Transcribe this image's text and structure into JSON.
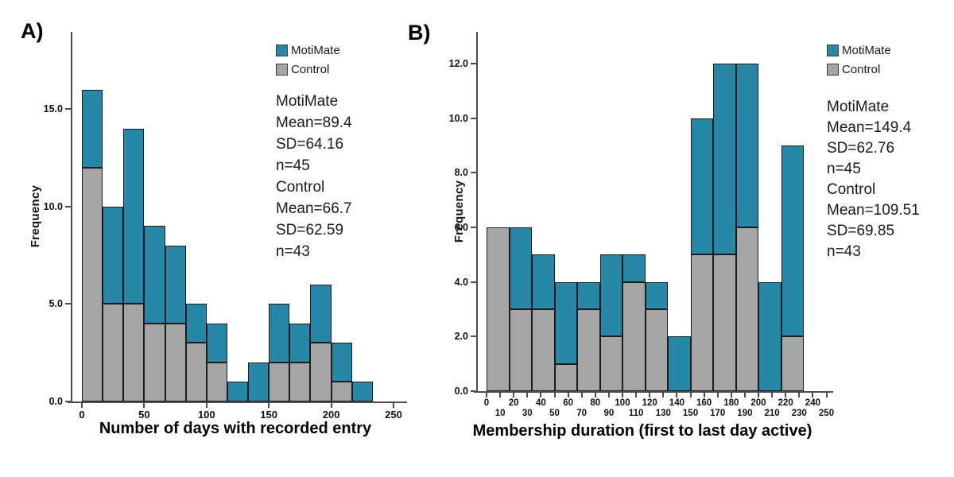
{
  "colors": {
    "motimate": "#2787a6",
    "control": "#a5a5a5",
    "bar_border": "#1b1b1b",
    "axis": "#4d4d4d",
    "text": "#1a1a1a"
  },
  "chart_data": [
    {
      "type": "bar",
      "subtype": "stacked-histogram",
      "panel_label": "A)",
      "xlabel": "Number of days with recorded entry",
      "ylabel": "Frequency",
      "bin_start": 0,
      "bin_width": 16.667,
      "xlim": [
        0,
        250
      ],
      "ylim": [
        0,
        19
      ],
      "grid": false,
      "legend_position": "top-right",
      "series": [
        {
          "name": "MotiMate",
          "color": "#2787a6",
          "values": [
            4,
            5,
            9,
            5,
            4,
            2,
            2,
            1,
            2,
            3,
            2,
            3,
            2,
            1
          ]
        },
        {
          "name": "Control",
          "color": "#a5a5a5",
          "values": [
            12,
            5,
            5,
            4,
            4,
            3,
            2,
            0,
            0,
            2,
            2,
            3,
            1,
            0
          ]
        }
      ],
      "stack_order_bottom_to_top": [
        "Control",
        "MotiMate"
      ],
      "totals": [
        16,
        10,
        14,
        9,
        8,
        5,
        4,
        1,
        2,
        5,
        4,
        6,
        3,
        1
      ],
      "y_tick_values": [
        0,
        5,
        10,
        15
      ],
      "y_tick_labels": [
        "0.0",
        "5.0",
        "10.0",
        "15.0"
      ],
      "x_tick_values": [
        0,
        50,
        100,
        150,
        200,
        250
      ],
      "x_tick_labels": [
        "0",
        "50",
        "100",
        "150",
        "200",
        "250"
      ],
      "x_tick_stagger": false,
      "legend": [
        {
          "label": "MotiMate",
          "color": "#2787a6"
        },
        {
          "label": "Control",
          "color": "#a5a5a5"
        }
      ],
      "annotation_lines": [
        "MotiMate",
        "Mean=89.4",
        "SD=64.16",
        "n=45",
        "Control",
        "Mean=66.7",
        "SD=62.59",
        "n=43"
      ]
    },
    {
      "type": "bar",
      "subtype": "stacked-histogram",
      "panel_label": "B)",
      "xlabel": "Membership duration (first to last day active)",
      "ylabel": "Frequency",
      "bin_start": 0,
      "bin_width": 16.667,
      "xlim": [
        0,
        250
      ],
      "ylim": [
        0,
        13.2
      ],
      "grid": false,
      "legend_position": "top-right",
      "series": [
        {
          "name": "MotiMate",
          "color": "#2787a6",
          "values": [
            0,
            3,
            2,
            3,
            1,
            3,
            1,
            1,
            2,
            5,
            7,
            6,
            4,
            7
          ]
        },
        {
          "name": "Control",
          "color": "#a5a5a5",
          "values": [
            6,
            3,
            3,
            1,
            3,
            2,
            4,
            3,
            0,
            5,
            5,
            6,
            0,
            2
          ]
        }
      ],
      "stack_order_bottom_to_top": [
        "Control",
        "MotiMate"
      ],
      "totals": [
        6,
        6,
        5,
        4,
        4,
        5,
        5,
        4,
        2,
        10,
        12,
        12,
        4,
        9
      ],
      "y_tick_values": [
        0,
        2,
        4,
        6,
        8,
        10,
        12
      ],
      "y_tick_labels": [
        "0.0",
        "2.0",
        "4.0",
        "6.0",
        "8.0",
        "10.0",
        "12.0"
      ],
      "x_tick_values": [
        0,
        10,
        20,
        30,
        40,
        50,
        60,
        70,
        80,
        90,
        100,
        110,
        120,
        130,
        140,
        150,
        160,
        170,
        180,
        190,
        200,
        210,
        220,
        230,
        240,
        250
      ],
      "x_tick_labels": [
        "0",
        "10",
        "20",
        "30",
        "40",
        "50",
        "60",
        "70",
        "80",
        "90",
        "100",
        "110",
        "120",
        "130",
        "140",
        "150",
        "160",
        "170",
        "180",
        "190",
        "200",
        "210",
        "220",
        "230",
        "240",
        "250"
      ],
      "x_tick_stagger": true,
      "legend": [
        {
          "label": "MotiMate",
          "color": "#2787a6"
        },
        {
          "label": "Control",
          "color": "#a5a5a5"
        }
      ],
      "annotation_lines": [
        "MotiMate",
        "Mean=149.4",
        "SD=62.76",
        "n=45",
        "Control",
        "Mean=109.51",
        "SD=69.85",
        "n=43"
      ]
    }
  ]
}
